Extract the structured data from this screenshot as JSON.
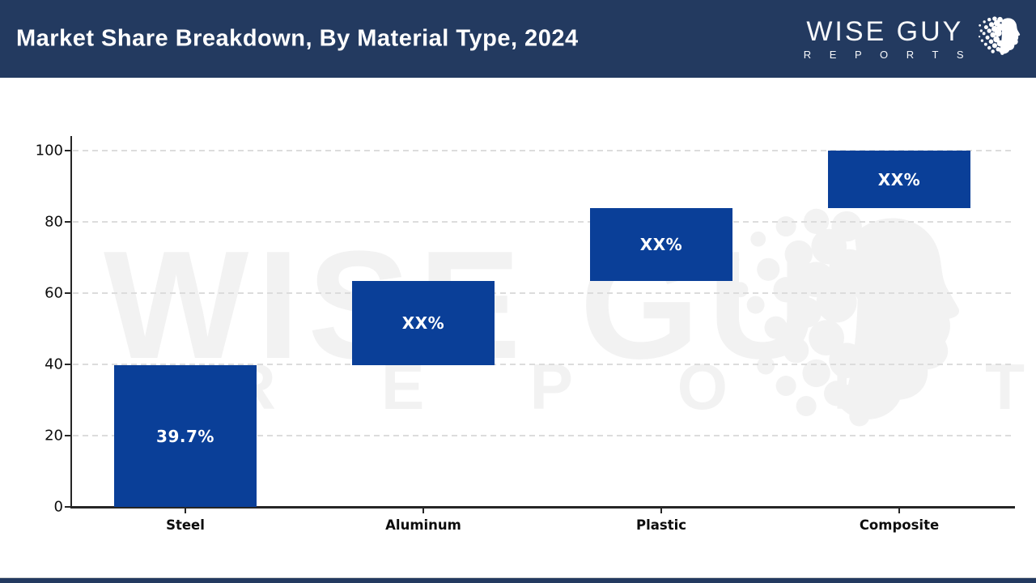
{
  "header": {
    "title": "Market Share Breakdown, By Material Type, 2024",
    "logo": {
      "line1": "WISE GUY",
      "line2": "REPORTS"
    }
  },
  "watermark": {
    "line1": "WISE GUY",
    "line2": "REPORTS"
  },
  "chart_data": {
    "type": "bar",
    "subtype": "waterfall",
    "title": "Market Share Breakdown, By Material Type, 2024",
    "categories": [
      "Steel",
      "Aluminum",
      "Plastic",
      "Composite"
    ],
    "segments": [
      {
        "category": "Steel",
        "start": 0,
        "end": 39.7,
        "label": "39.7%"
      },
      {
        "category": "Aluminum",
        "start": 39.7,
        "end": 63.5,
        "label": "XX%"
      },
      {
        "category": "Plastic",
        "start": 63.5,
        "end": 83.8,
        "label": "XX%"
      },
      {
        "category": "Composite",
        "start": 83.8,
        "end": 100,
        "label": "XX%"
      }
    ],
    "xlabel": "",
    "ylabel": "",
    "yticks": [
      0,
      20,
      40,
      60,
      80,
      100
    ],
    "ylim": [
      0,
      104
    ],
    "grid": "horizontal-dashed",
    "legend": "none",
    "bar_color": "#0a3f98",
    "bar_label_color": "#ffffff",
    "axis_color": "#262626",
    "gridline_color": "#dcdcdc",
    "header_color": "#233a60"
  }
}
